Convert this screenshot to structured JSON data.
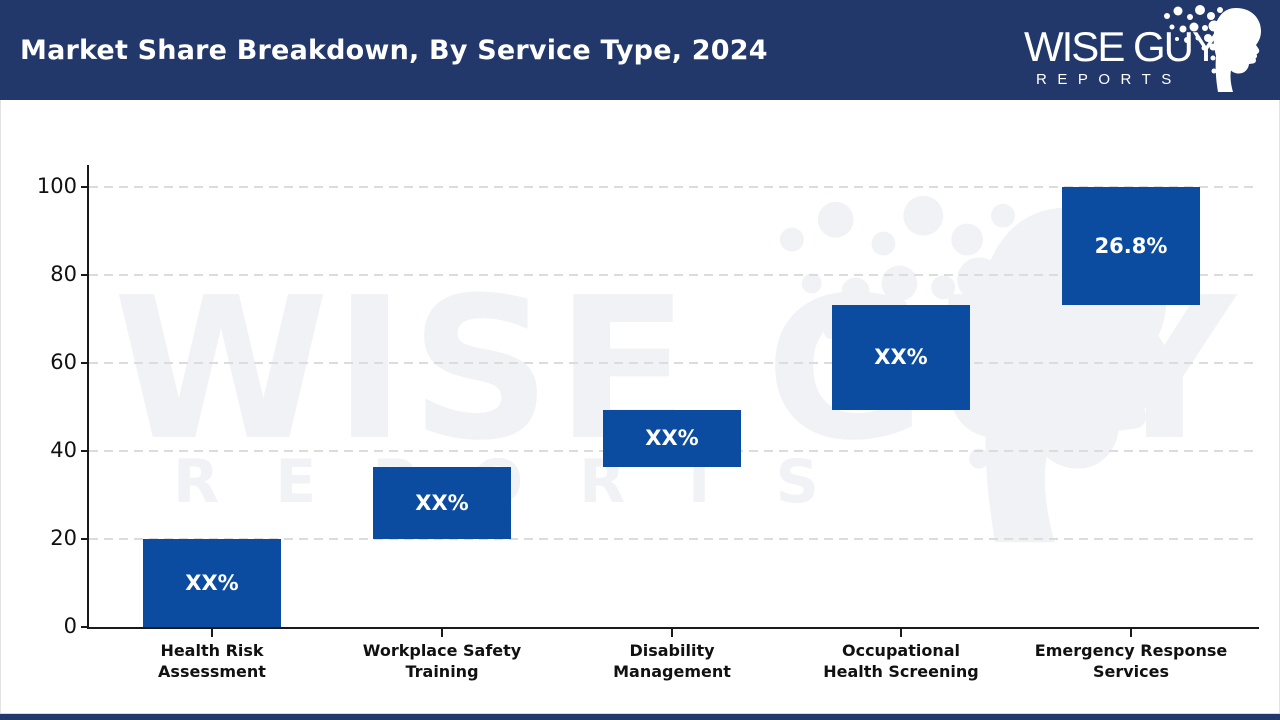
{
  "header": {
    "title": "Market Share Breakdown, By Service Type, 2024",
    "bg_color": "#22376A",
    "logo": {
      "wordmark": "WISE GUY",
      "subtext": "REPORTS"
    }
  },
  "watermark": {
    "wordmark": "WISE GUY",
    "subtext": "REPORTS"
  },
  "chart_data": {
    "type": "waterfall",
    "title": "Market Share Breakdown, By Service Type, 2024",
    "categories": [
      "Health Risk\nAssessment",
      "Workplace Safety\nTraining",
      "Disability\nManagement",
      "Occupational\nHealth Screening",
      "Emergency Response\nServices"
    ],
    "segments": [
      {
        "category": "Health Risk Assessment",
        "start": 0,
        "end": 20.0,
        "label": "XX%"
      },
      {
        "category": "Workplace Safety Training",
        "start": 20.0,
        "end": 36.4,
        "label": "XX%"
      },
      {
        "category": "Disability Management",
        "start": 36.4,
        "end": 49.4,
        "label": "XX%"
      },
      {
        "category": "Occupational Health Screening",
        "start": 49.4,
        "end": 73.2,
        "label": "XX%"
      },
      {
        "category": "Emergency Response Services",
        "start": 73.2,
        "end": 100.0,
        "label": "26.8%"
      }
    ],
    "xlabel": "",
    "ylabel": "",
    "ylim": [
      0,
      105
    ],
    "yticks": [
      0,
      20,
      40,
      60,
      80,
      100
    ],
    "grid": "horizontal-dashed",
    "legend": "none",
    "bar_color": "#0B4CA1",
    "bar_label_color": "#FFFFFF",
    "grid_color": "#DCDCDC",
    "axis_color": "#1A1A1A"
  },
  "footer": {
    "bg_color": "#22376A"
  }
}
